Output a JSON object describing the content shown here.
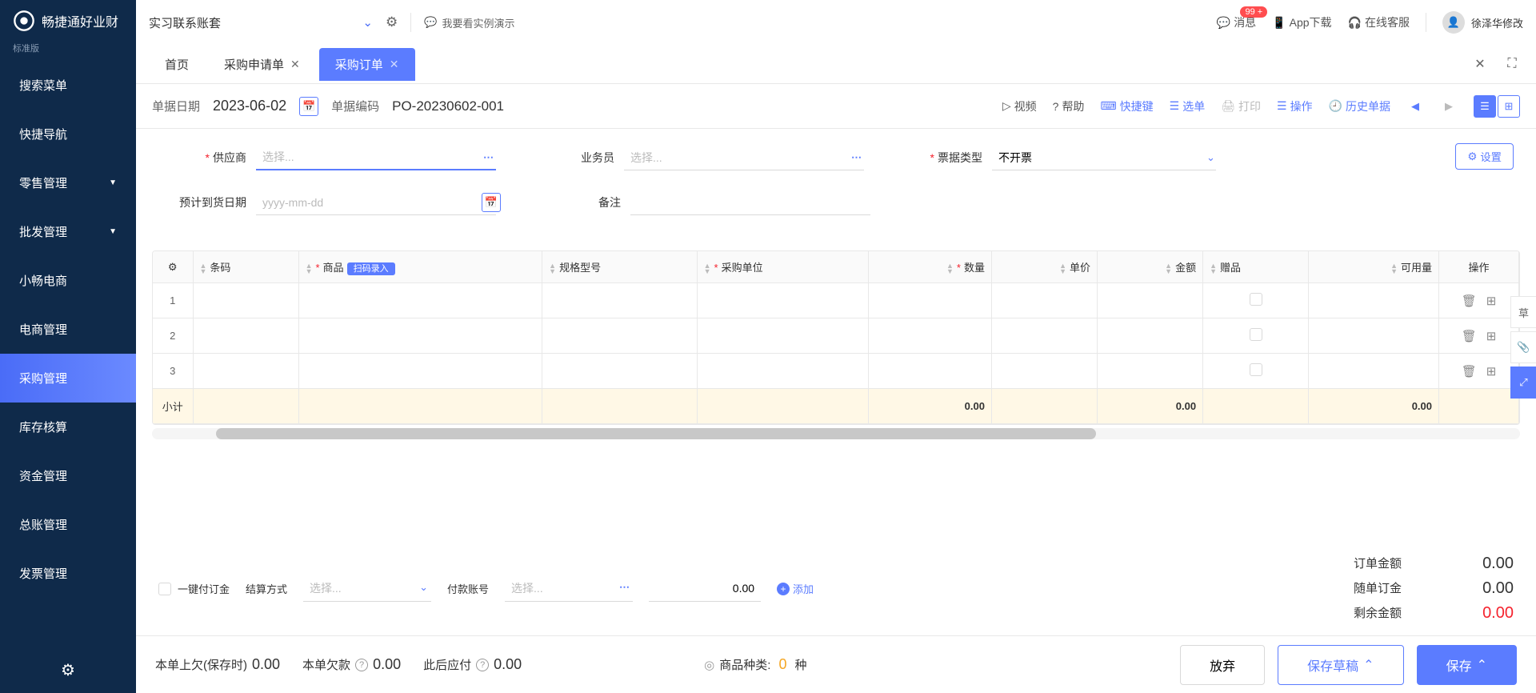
{
  "brand": {
    "name": "畅捷通好业财",
    "version": "标准版"
  },
  "sidebar": {
    "items": [
      {
        "label": "搜索菜单",
        "expand": false
      },
      {
        "label": "快捷导航",
        "expand": false
      },
      {
        "label": "零售管理",
        "expand": true
      },
      {
        "label": "批发管理",
        "expand": true
      },
      {
        "label": "小畅电商",
        "expand": false
      },
      {
        "label": "电商管理",
        "expand": false
      },
      {
        "label": "采购管理",
        "expand": false,
        "active": true
      },
      {
        "label": "库存核算",
        "expand": false
      },
      {
        "label": "资金管理",
        "expand": false
      },
      {
        "label": "总账管理",
        "expand": false
      },
      {
        "label": "发票管理",
        "expand": false
      }
    ]
  },
  "topbar": {
    "account": "实习联系账套",
    "demo": "我要看实例演示",
    "msg": "消息",
    "msg_badge": "99 +",
    "app": "App下载",
    "service": "在线客服",
    "user": "徐泽华修改"
  },
  "tabs": {
    "items": [
      {
        "label": "首页",
        "closable": false
      },
      {
        "label": "采购申请单",
        "closable": true
      },
      {
        "label": "采购订单",
        "closable": true,
        "active": true
      }
    ]
  },
  "doc": {
    "date_label": "单据日期",
    "date": "2023-06-02",
    "code_label": "单据编码",
    "code": "PO-20230602-001",
    "actions": {
      "video": "视频",
      "help": "帮助",
      "shortcut": "快捷键",
      "select": "选单",
      "print": "打印",
      "operate": "操作",
      "history": "历史单据"
    }
  },
  "form": {
    "supplier_label": "供应商",
    "supplier_ph": "选择...",
    "salesman_label": "业务员",
    "salesman_ph": "选择...",
    "invoice_label": "票据类型",
    "invoice_value": "不开票",
    "arrival_label": "预计到货日期",
    "arrival_ph": "yyyy-mm-dd",
    "remark_label": "备注",
    "settings_btn": "设置"
  },
  "table": {
    "cols": {
      "barcode": "条码",
      "product": "商品",
      "scan": "扫码录入",
      "spec": "规格型号",
      "unit": "采购单位",
      "qty": "数量",
      "price": "单价",
      "amount": "金额",
      "gift": "赠品",
      "avail": "可用量",
      "op": "操作"
    },
    "rows": [
      1,
      2,
      3
    ],
    "subtotal_label": "小计",
    "subtotal": {
      "qty": "0.00",
      "amount": "0.00",
      "avail": "0.00"
    }
  },
  "payment": {
    "deposit_check": "一键付订金",
    "method_label": "结算方式",
    "method_ph": "选择...",
    "account_label": "付款账号",
    "account_ph": "选择...",
    "account_val": "0.00",
    "add": "添加"
  },
  "totals": {
    "order_label": "订单金额",
    "order_val": "0.00",
    "deposit_label": "随单订金",
    "deposit_val": "0.00",
    "remain_label": "剩余金额",
    "remain_val": "0.00"
  },
  "footer": {
    "last_owe": "本单上欠(保存时)",
    "last_owe_val": "0.00",
    "this_owe": "本单欠款",
    "this_owe_val": "0.00",
    "after_pay": "此后应付",
    "after_pay_val": "0.00",
    "kind_label": "商品种类:",
    "kind_val": "0",
    "kind_unit": "种",
    "discard": "放弃",
    "draft": "保存草稿",
    "save": "保存"
  }
}
